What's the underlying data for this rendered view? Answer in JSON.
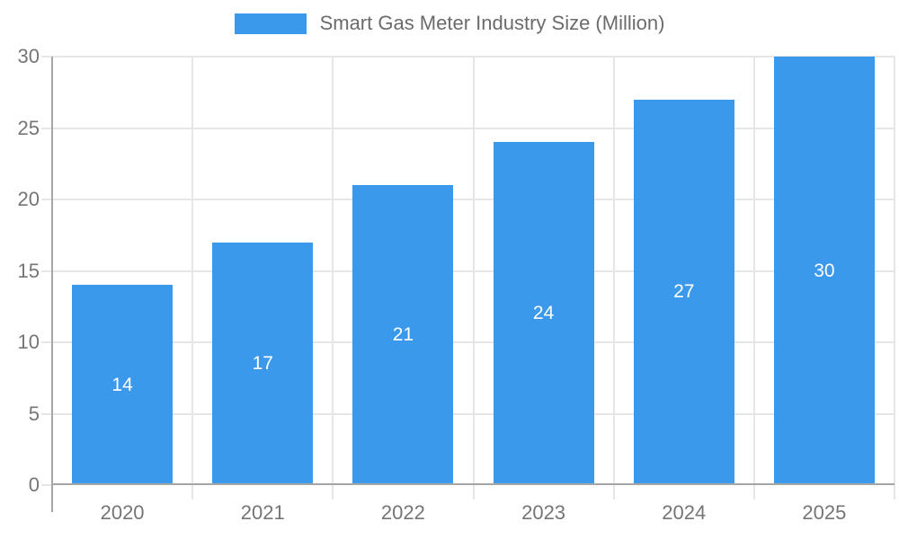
{
  "legend": {
    "label": "Smart Gas Meter Industry Size (Million)"
  },
  "chart_data": {
    "type": "bar",
    "title": "Smart Gas Meter Industry Size (Million)",
    "categories": [
      "2020",
      "2021",
      "2022",
      "2023",
      "2024",
      "2025"
    ],
    "values": [
      14,
      17,
      21,
      24,
      27,
      30
    ],
    "series": [
      {
        "name": "Smart Gas Meter Industry Size (Million)",
        "values": [
          14,
          17,
          21,
          24,
          27,
          30
        ]
      }
    ],
    "xlabel": "",
    "ylabel": "",
    "ylim": [
      0,
      30
    ],
    "yticks": [
      0,
      5,
      10,
      15,
      20,
      25,
      30
    ],
    "grid": true,
    "legend_position": "top",
    "value_labels_shown": true
  },
  "colors": {
    "bar": "#3B99EC",
    "axis_line": "#a6a6a6",
    "gridline": "#e6e6e6",
    "axis_text": "#757575",
    "legend_text": "#6b6b6b",
    "value_text": "#ffffff",
    "background": "#ffffff"
  }
}
